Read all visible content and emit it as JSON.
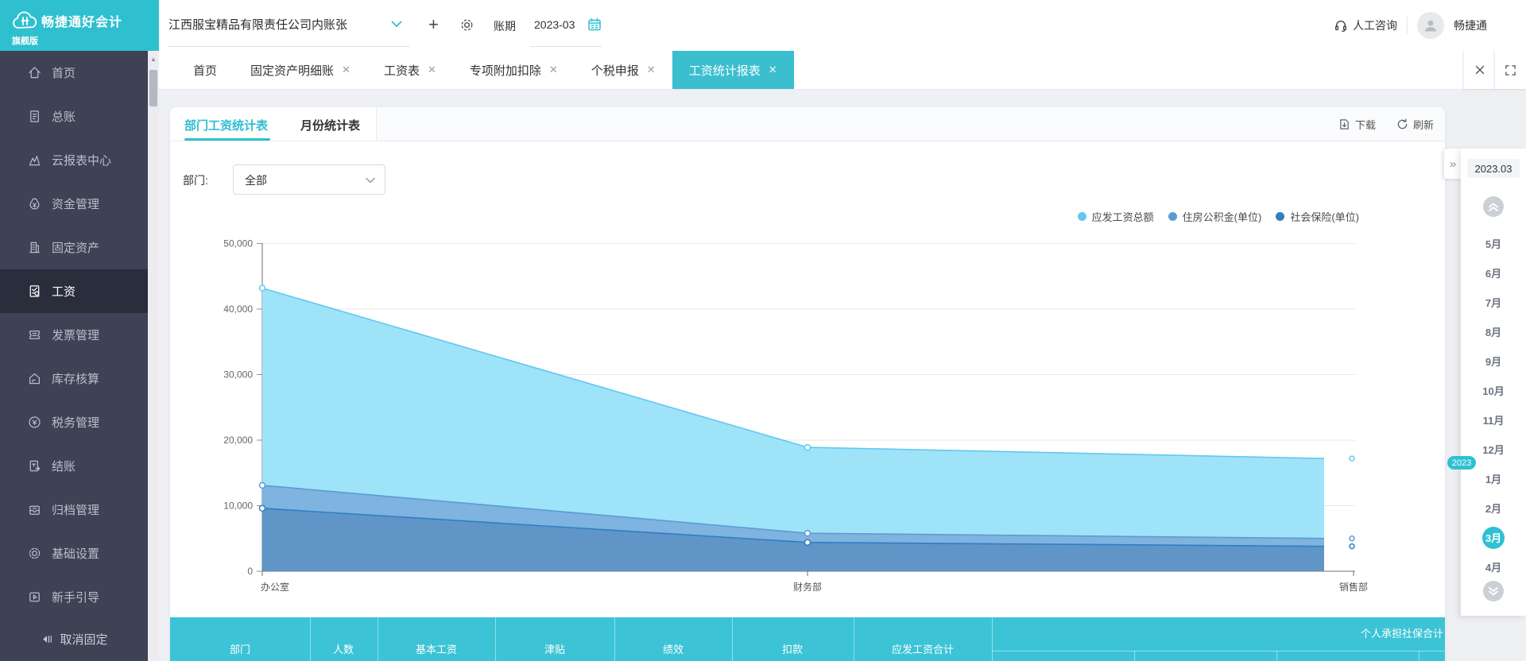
{
  "accent": "#2fc0d2",
  "topbar": {
    "logo_title": "畅捷通好会计",
    "logo_badge": "旗舰版",
    "company": "江西服宝精品有限责任公司内账张",
    "period_label": "账期",
    "period_value": "2023-03",
    "help_label": "人工咨询",
    "user_name": "畅捷通"
  },
  "tab_bar": {
    "tabs": [
      {
        "label": "首页",
        "closable": false,
        "active": false
      },
      {
        "label": "固定资产明细账",
        "closable": true,
        "active": false
      },
      {
        "label": "工资表",
        "closable": true,
        "active": false
      },
      {
        "label": "专项附加扣除",
        "closable": true,
        "active": false
      },
      {
        "label": "个税申报",
        "closable": true,
        "active": false
      },
      {
        "label": "工资统计报表",
        "closable": true,
        "active": true
      }
    ]
  },
  "sidebar": {
    "active_index": 5,
    "items": [
      {
        "key": "home",
        "label": "首页"
      },
      {
        "key": "general-ledger",
        "label": "总账"
      },
      {
        "key": "cloud-reports",
        "label": "云报表中心"
      },
      {
        "key": "funds",
        "label": "资金管理"
      },
      {
        "key": "fixed-assets",
        "label": "固定资产"
      },
      {
        "key": "salary",
        "label": "工资"
      },
      {
        "key": "invoice",
        "label": "发票管理"
      },
      {
        "key": "inventory",
        "label": "库存核算"
      },
      {
        "key": "tax",
        "label": "税务管理"
      },
      {
        "key": "closing",
        "label": "结账"
      },
      {
        "key": "archive",
        "label": "归档管理"
      },
      {
        "key": "settings",
        "label": "基础设置"
      },
      {
        "key": "guide",
        "label": "新手引导"
      }
    ],
    "footer_label": "取消固定"
  },
  "report": {
    "subtabs": [
      {
        "label": "部门工资统计表",
        "active": true
      },
      {
        "label": "月份统计表",
        "active": false
      }
    ],
    "download_label": "下载",
    "refresh_label": "刷新",
    "filter_label": "部门:",
    "filter_value": "全部"
  },
  "chart_data": {
    "type": "area",
    "categories": [
      "办公室",
      "财务部",
      "销售部"
    ],
    "series": [
      {
        "name": "社会保险(单位)",
        "color": "#2e7fc1",
        "fill": "#6095c8",
        "values": [
          9600,
          4400,
          3800
        ]
      },
      {
        "name": "住房公积金(单位)",
        "color": "#5b9bd5",
        "fill": "#7fb3e0",
        "values": [
          13100,
          5800,
          5000
        ]
      },
      {
        "name": "应发工资总额",
        "color": "#62c8ef",
        "fill": "#9fe3f8",
        "values": [
          43200,
          18900,
          17200
        ]
      }
    ],
    "y_ticks": [
      "0",
      "10,000",
      "20,000",
      "30,000",
      "40,000",
      "50,000"
    ],
    "ylim": [
      0,
      50000
    ],
    "grid": true,
    "legend_position": "top-right"
  },
  "table": {
    "columns": [
      "部门",
      "人数",
      "基本工资",
      "津贴",
      "绩效",
      "扣款",
      "应发工资合计"
    ],
    "group_column": "个人承担社保合计",
    "header_bg": "#3cc3d6"
  },
  "month_panel": {
    "period": "2023.03",
    "year_badge": "2023",
    "months": [
      "5月",
      "6月",
      "7月",
      "8月",
      "9月",
      "10月",
      "11月",
      "12月",
      "1月",
      "2月",
      "3月",
      "4月"
    ],
    "active_month": "3月"
  }
}
